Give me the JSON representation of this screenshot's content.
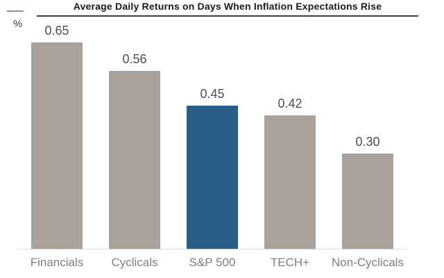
{
  "header": {
    "unit_label": "%"
  },
  "chart_data": {
    "type": "bar",
    "title": "Average Daily Returns on Days When Inflation Expectations Rise",
    "xlabel": "",
    "ylabel": "%",
    "categories": [
      "Financials",
      "Cyclicals",
      "S&P 500",
      "TECH+",
      "Non-Cyclicals"
    ],
    "values": [
      0.65,
      0.56,
      0.45,
      0.42,
      0.3
    ],
    "value_labels": [
      "0.65",
      "0.56",
      "0.45",
      "0.42",
      "0.30"
    ],
    "ylim": [
      0,
      0.7
    ],
    "grid": false,
    "legend": "none",
    "value_labels_shown": true,
    "highlight_category": "S&P 500",
    "bar_colors": [
      "#A9A29B",
      "#A9A29B",
      "#2A5F8A",
      "#A9A29B",
      "#A9A29B"
    ],
    "colors": {
      "bar_default": "#A9A29B",
      "bar_highlight": "#2A5F8A",
      "axis_line": "#D8D8D8",
      "title_text": "#1A1A1A",
      "title_underline": "#3F3F3F",
      "value_label_text": "#4D4D4D",
      "category_label_text": "#7E7E7E"
    }
  }
}
